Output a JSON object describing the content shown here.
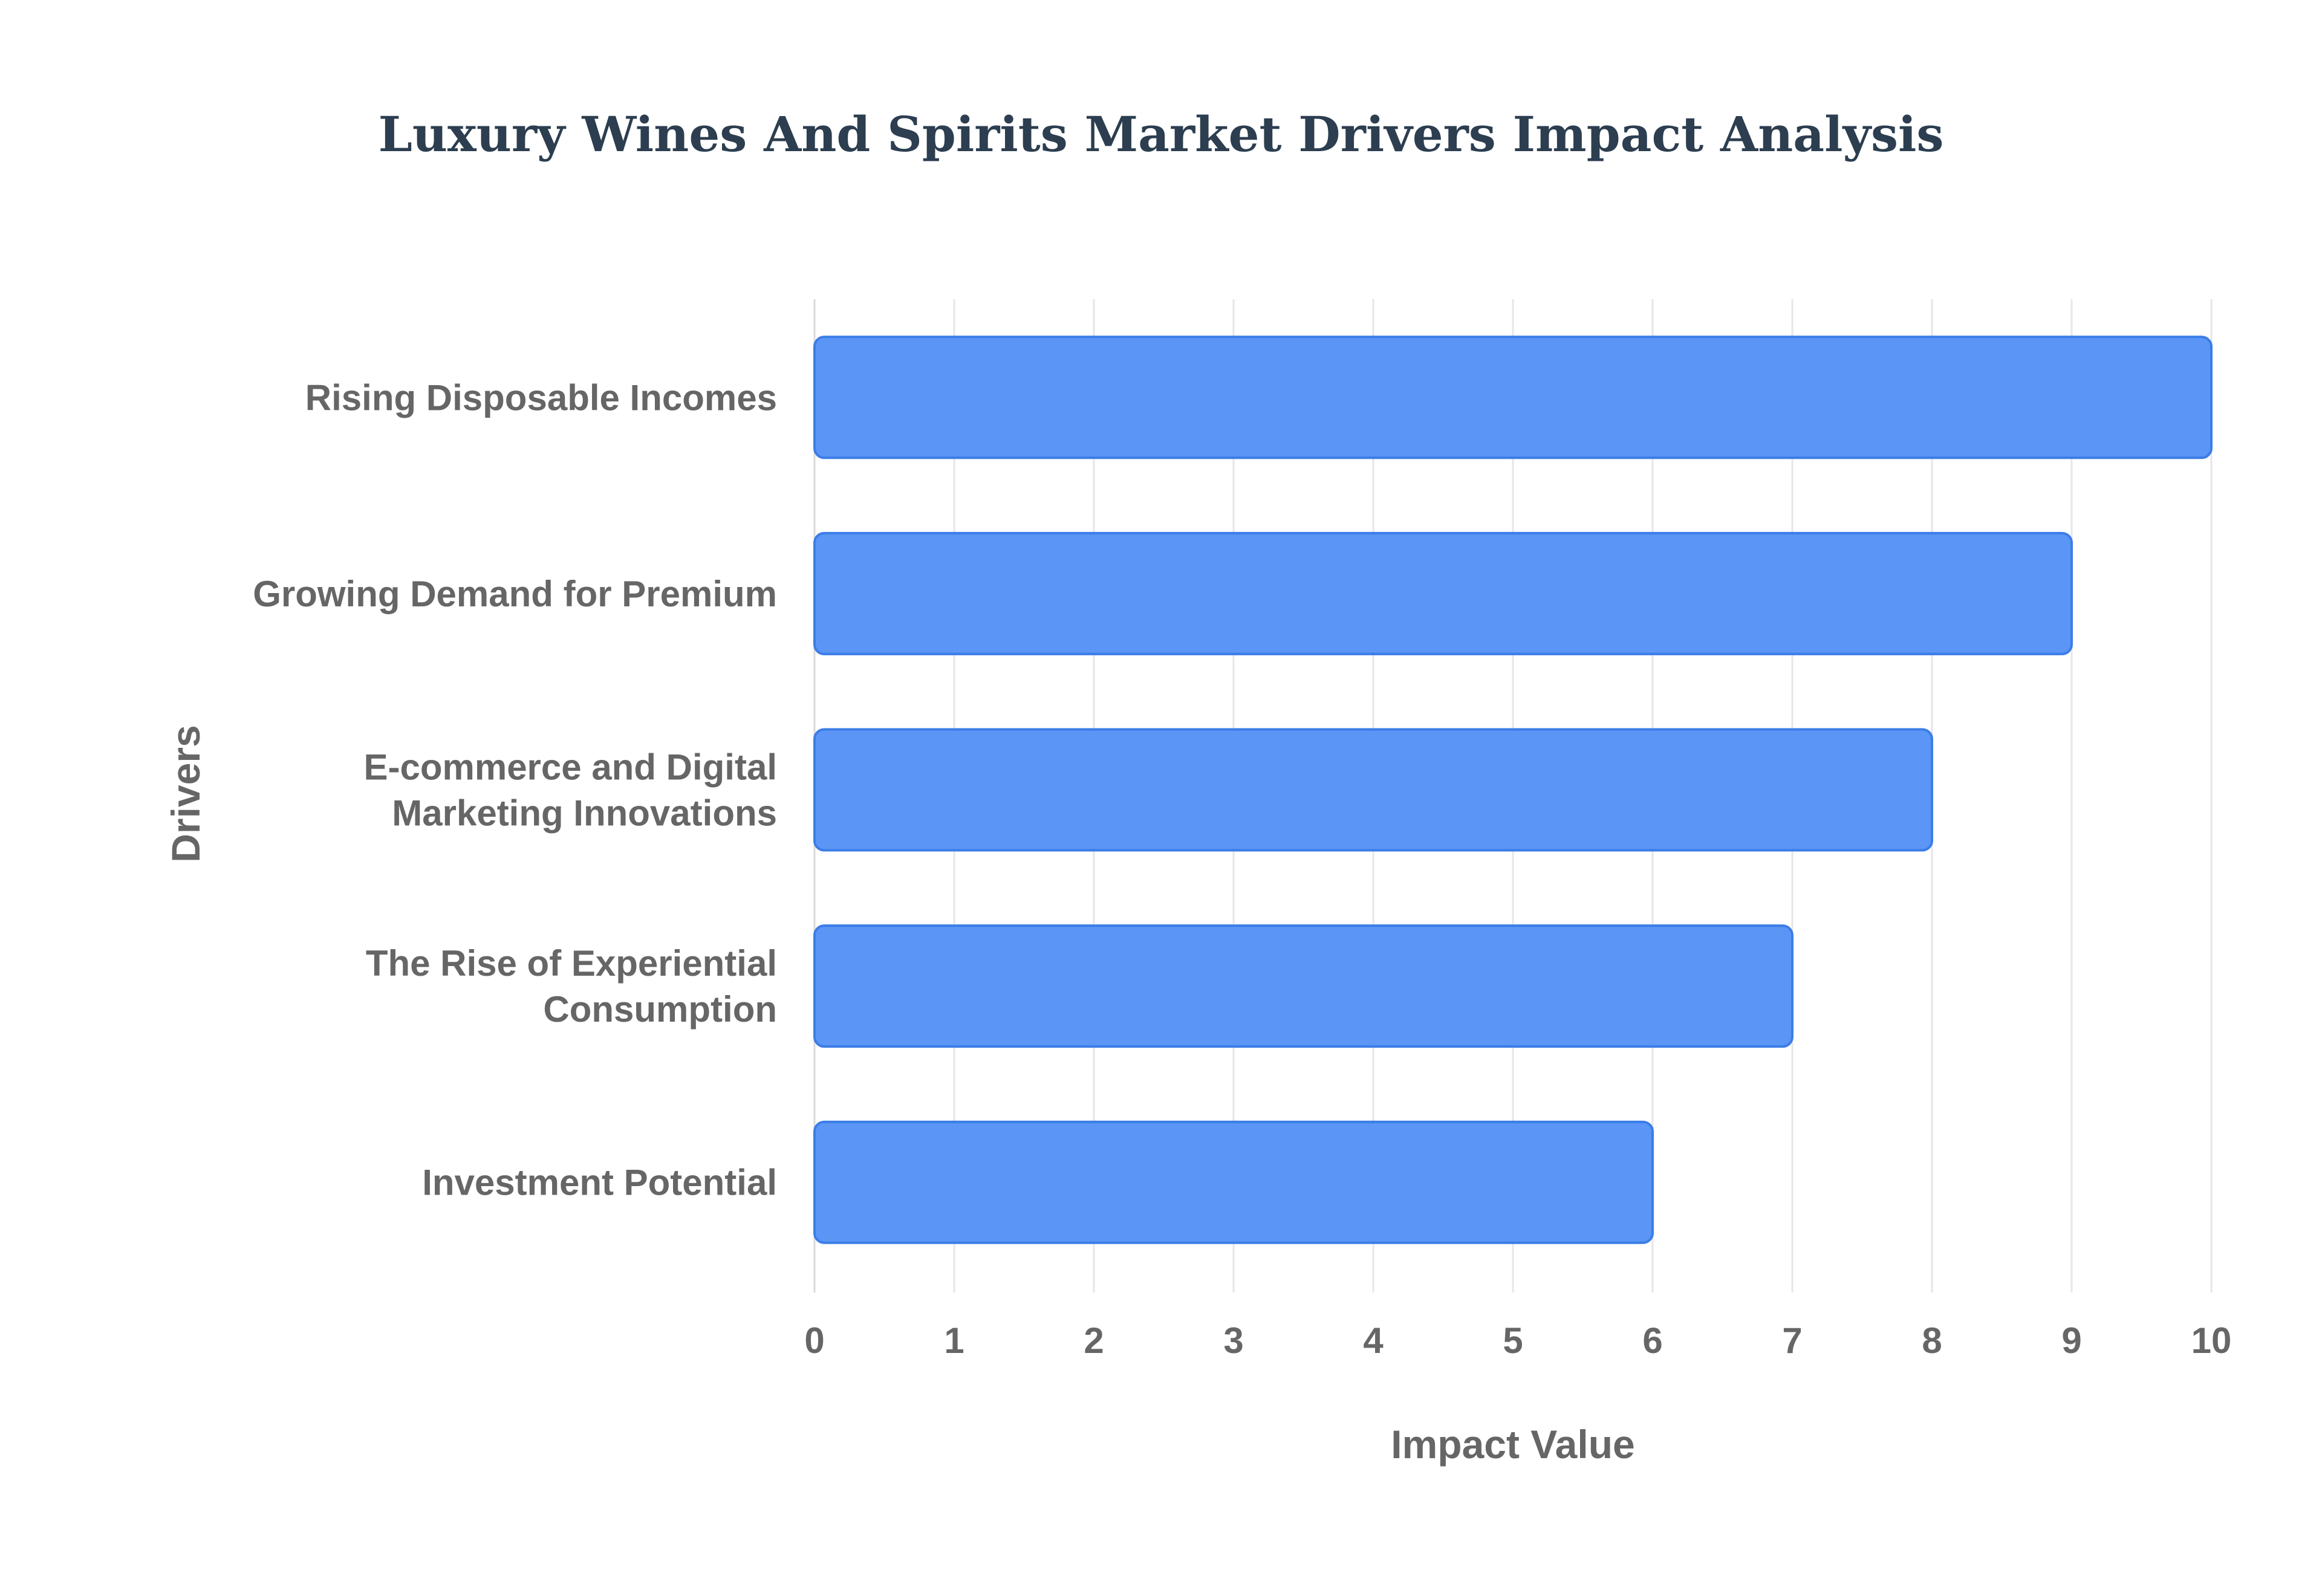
{
  "chart_data": {
    "type": "bar",
    "orientation": "horizontal",
    "title": "Luxury Wines And Spirits Market Drivers Impact Analysis",
    "xlabel": "Impact Value",
    "ylabel": "Drivers",
    "xlim": [
      0,
      10
    ],
    "x_ticks": [
      "0",
      "1",
      "2",
      "3",
      "4",
      "5",
      "6",
      "7",
      "8",
      "9",
      "10"
    ],
    "grid": true,
    "legend": "none",
    "colors": {
      "bar_fill": "#5b95f5",
      "bar_stroke": "#3b7de8"
    },
    "categories": [
      [
        "Rising Disposable Incomes"
      ],
      [
        "Growing Demand for Premium"
      ],
      [
        "E-commerce and Digital",
        "Marketing Innovations"
      ],
      [
        "The Rise of Experiential",
        "Consumption"
      ],
      [
        "Investment Potential"
      ]
    ],
    "values": [
      10,
      9,
      8,
      7,
      6
    ]
  }
}
